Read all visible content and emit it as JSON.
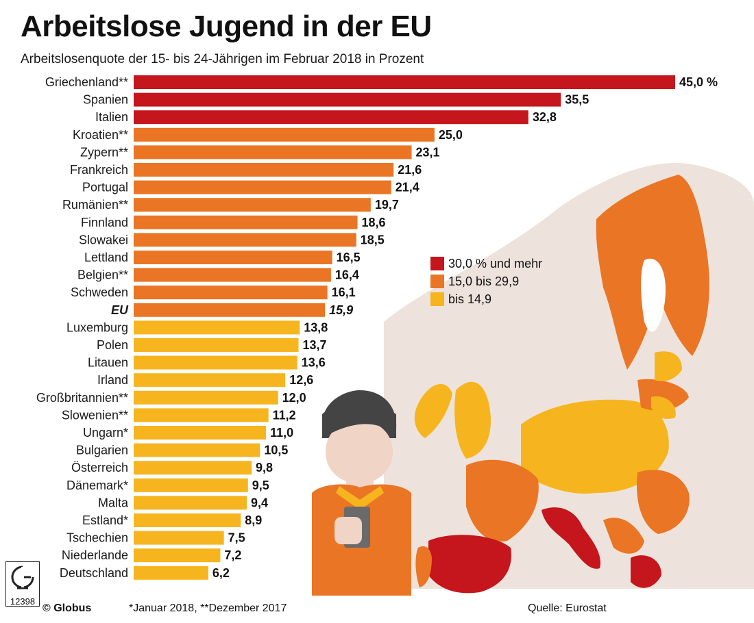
{
  "chart_data": {
    "type": "bar",
    "orientation": "horizontal",
    "title": "Arbeitslose Jugend in der EU",
    "subtitle": "Arbeitslosenquote der 15- bis 24-Jährigen im Februar 2018 in Prozent",
    "unit_suffix": " %",
    "categories": [
      "Griechenland**",
      "Spanien",
      "Italien",
      "Kroatien**",
      "Zypern**",
      "Frankreich",
      "Portugal",
      "Rumänien**",
      "Finnland",
      "Slowakei",
      "Lettland",
      "Belgien**",
      "Schweden",
      "EU",
      "Luxemburg",
      "Polen",
      "Litauen",
      "Irland",
      "Großbritannien**",
      "Slowenien**",
      "Ungarn*",
      "Bulgarien",
      "Österreich",
      "Dänemark*",
      "Malta",
      "Estland*",
      "Tschechien",
      "Niederlande",
      "Deutschland"
    ],
    "values": [
      45.0,
      35.5,
      32.8,
      25.0,
      23.1,
      21.6,
      21.4,
      19.7,
      18.6,
      18.5,
      16.5,
      16.4,
      16.1,
      15.9,
      13.8,
      13.7,
      13.6,
      12.6,
      12.0,
      11.2,
      11.0,
      10.5,
      9.8,
      9.5,
      9.4,
      8.9,
      7.5,
      7.2,
      6.2
    ],
    "value_labels": [
      "45,0 %",
      "35,5",
      "32,8",
      "25,0",
      "23,1",
      "21,6",
      "21,4",
      "19,7",
      "18,6",
      "18,5",
      "16,5",
      "16,4",
      "16,1",
      "15,9",
      "13,8",
      "13,7",
      "13,6",
      "12,6",
      "12,0",
      "11,2",
      "11,0",
      "10,5",
      "9,8",
      "9,5",
      "9,4",
      "8,9",
      "7,5",
      "7,2",
      "6,2"
    ],
    "highlight_category": "EU",
    "xlim": [
      0,
      45
    ],
    "legend": [
      {
        "label": "30,0 % und mehr",
        "color": "#c4161c",
        "min": 30.0
      },
      {
        "label": "15,0 bis 29,9",
        "color": "#ea7524",
        "min": 15.0
      },
      {
        "label": "bis 14,9",
        "color": "#f6b51e",
        "min": 0
      }
    ],
    "legend_placement": "right-middle"
  },
  "footer": {
    "brand": "© Globus",
    "note": "*Januar 2018, **Dezember 2017",
    "source": "Quelle: Eurostat",
    "logo_number": "12398"
  },
  "colors": {
    "red": "#c4161c",
    "orange": "#ea7524",
    "yellow": "#f6b51e",
    "land": "#ede3dc",
    "sea": "#ffffff"
  }
}
